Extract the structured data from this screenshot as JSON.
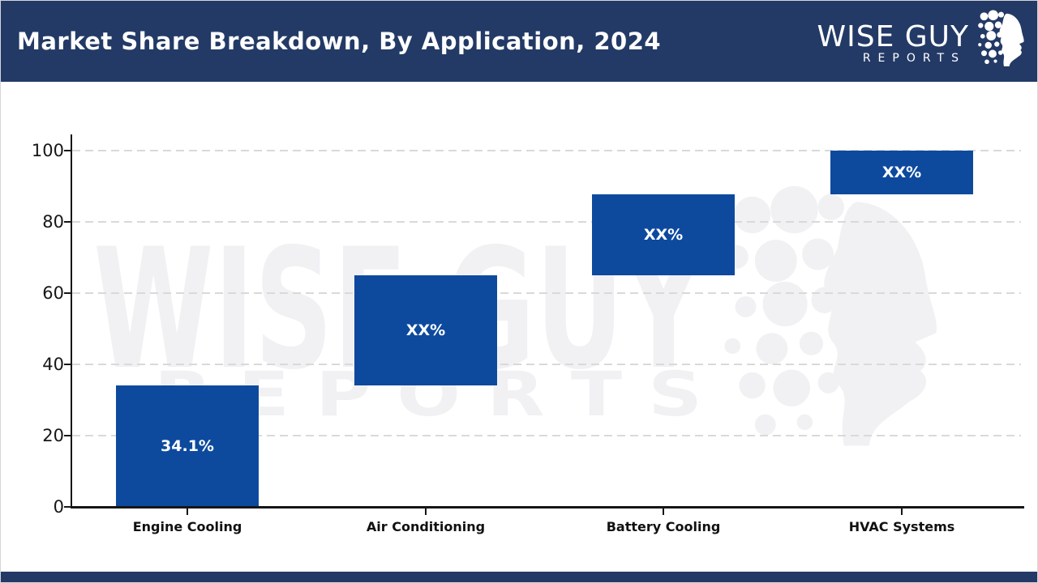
{
  "header": {
    "title": "Market Share Breakdown, By Application, 2024",
    "logo": {
      "line1": "WISE GUY",
      "line2": "REPORTS"
    }
  },
  "watermark": {
    "line1": "WISE GUY",
    "line2": "R E P O R T S"
  },
  "chart_data": {
    "type": "bar",
    "subtype": "floating-waterfall",
    "title": "Market Share Breakdown, By Application, 2024",
    "categories": [
      "Engine Cooling",
      "Air Conditioning",
      "Battery Cooling",
      "HVAC Systems"
    ],
    "series": [
      {
        "name": "Market Share (%)",
        "segments": [
          {
            "category": "Engine Cooling",
            "start": 0,
            "end": 34.1,
            "label": "34.1%"
          },
          {
            "category": "Air Conditioning",
            "start": 34.1,
            "end": 65.1,
            "label": "XX%"
          },
          {
            "category": "Battery Cooling",
            "start": 65.1,
            "end": 87.7,
            "label": "XX%"
          },
          {
            "category": "HVAC Systems",
            "start": 87.7,
            "end": 100,
            "label": "XX%"
          }
        ]
      }
    ],
    "xlabel": "",
    "ylabel": "",
    "ylim": [
      0,
      100
    ],
    "yticks": [
      0,
      20,
      40,
      60,
      80,
      100
    ],
    "grid": "horizontal-dashed",
    "legend": "none",
    "colors": {
      "bar": "#0d4a9e",
      "grid": "#d9d9d9",
      "axis": "#161616",
      "header_bg": "#233a66",
      "bar_label_text": "#ffffff",
      "watermark": "#f1f1f4"
    }
  }
}
